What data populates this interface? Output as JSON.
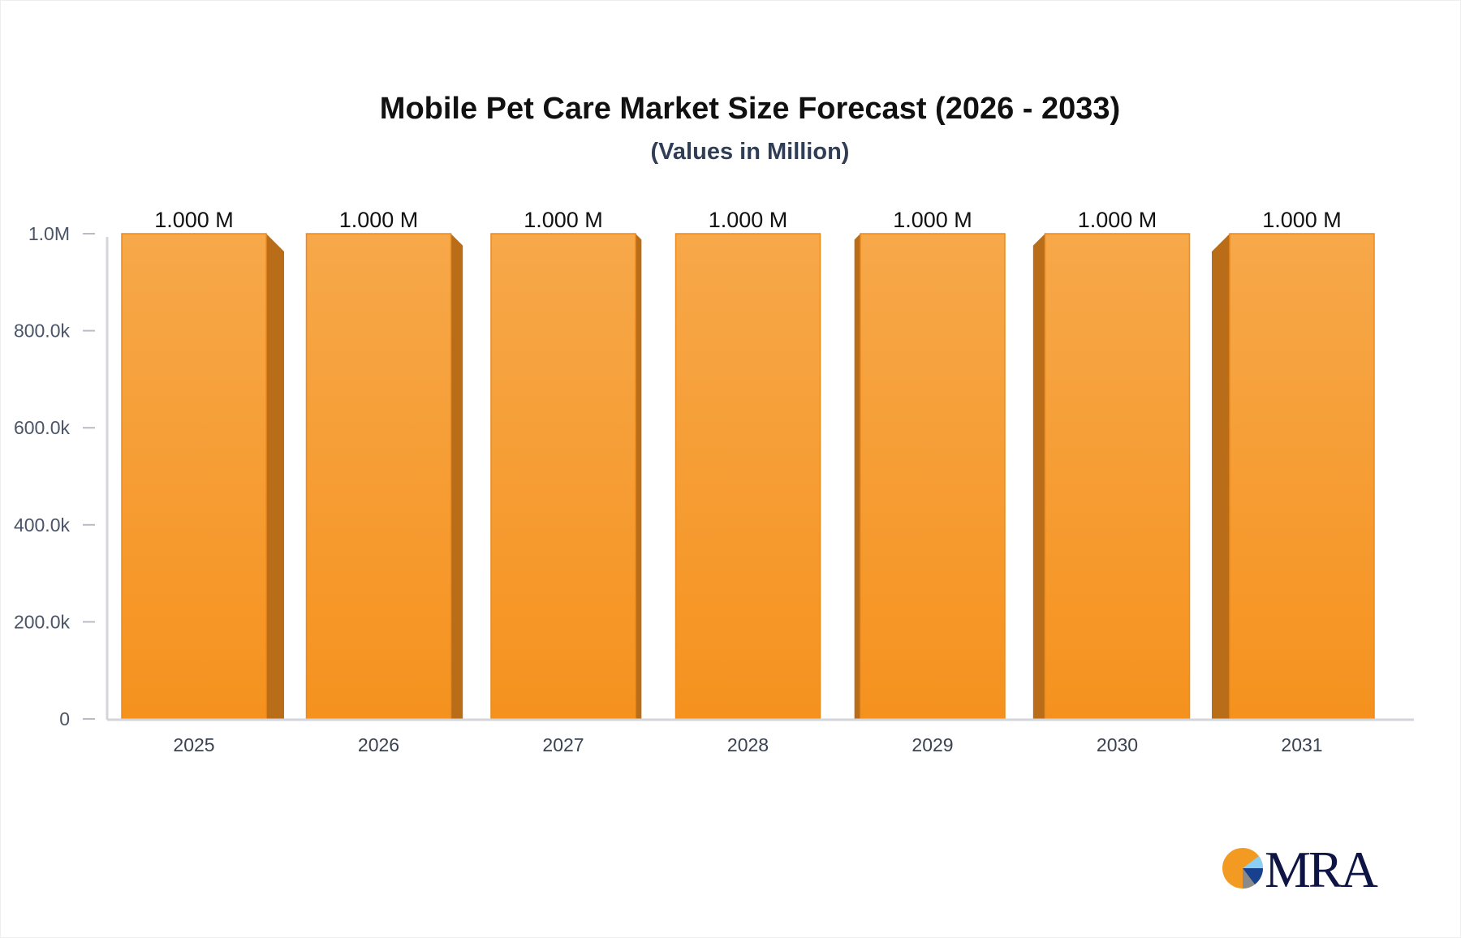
{
  "chart_data": {
    "type": "bar",
    "title": "Mobile Pet Care Market Size Forecast (2026 - 2033)",
    "subtitle": "(Values in Million)",
    "categories": [
      "2025",
      "2026",
      "2027",
      "2028",
      "2029",
      "2030",
      "2031"
    ],
    "values": [
      1000000,
      1000000,
      1000000,
      1000000,
      1000000,
      1000000,
      1000000
    ],
    "data_labels": [
      "1.000 M",
      "1.000 M",
      "1.000 M",
      "1.000 M",
      "1.000 M",
      "1.000 M",
      "1.000 M"
    ],
    "ylim": [
      0,
      1000000
    ],
    "yticks": [
      0,
      200000,
      400000,
      600000,
      800000,
      1000000
    ],
    "ytick_labels": [
      "0",
      "200.0k",
      "400.0k",
      "600.0k",
      "800.0k",
      "1.0M"
    ],
    "xlabel": "",
    "ylabel": "",
    "grid": false,
    "bar_style": "3d",
    "colors": {
      "bar_top": "#f7a84a",
      "bar_bottom": "#f5921e",
      "bar_side": "#b96d18",
      "title": "#111111",
      "subtitle": "#2f3e55",
      "axis": "#d3d5da"
    }
  },
  "logo": {
    "text": "MRA"
  }
}
